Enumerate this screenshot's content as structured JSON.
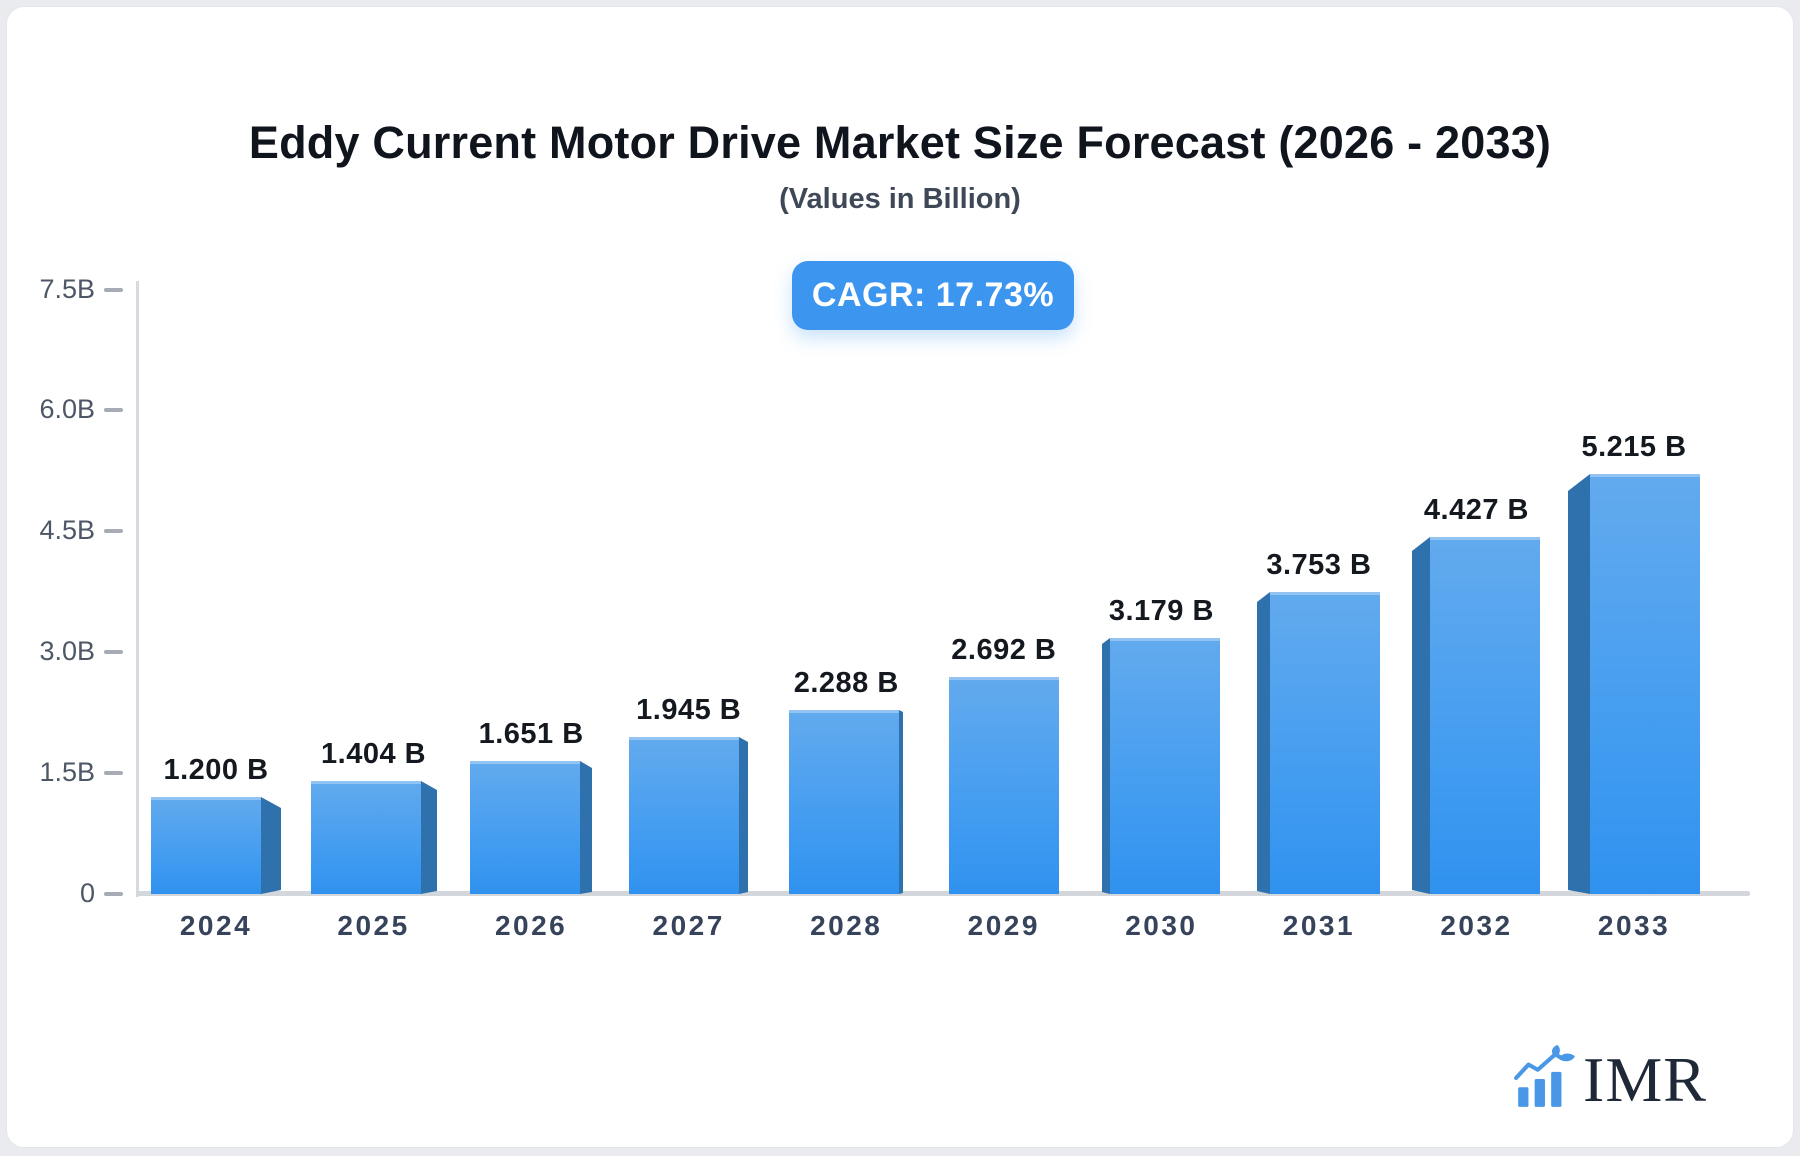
{
  "page": {
    "background": "#e9ebee",
    "card_background": "#ffffff"
  },
  "header": {
    "title": "Eddy Current Motor Drive Market Size Forecast (2026 - 2033)",
    "subtitle": "(Values in Billion)"
  },
  "badge": {
    "label": "CAGR: 17.73%",
    "background": "#3c96f0",
    "text_color": "#ffffff"
  },
  "chart_data": {
    "type": "bar",
    "title": "Eddy Current Motor Drive Market Size Forecast (2026 - 2033)",
    "subtitle": "(Values in Billion)",
    "categories": [
      "2024",
      "2025",
      "2026",
      "2027",
      "2028",
      "2029",
      "2030",
      "2031",
      "2032",
      "2033"
    ],
    "values": [
      1.2,
      1.404,
      1.651,
      1.945,
      2.288,
      2.692,
      3.179,
      3.753,
      4.427,
      5.215
    ],
    "bar_labels": [
      "1.200 B",
      "1.404 B",
      "1.651 B",
      "1.945 B",
      "2.288 B",
      "2.692 B",
      "3.179 B",
      "3.753 B",
      "4.427 B",
      "5.215 B"
    ],
    "y_ticks": [
      {
        "label": "7.5B",
        "value": 7.5
      },
      {
        "label": "6.0B",
        "value": 6.0
      },
      {
        "label": "4.5B",
        "value": 4.5
      },
      {
        "label": "3.0B",
        "value": 3.0
      },
      {
        "label": "1.5B",
        "value": 1.5
      },
      {
        "label": "0",
        "value": 0
      }
    ],
    "ylim": [
      0,
      7.5
    ],
    "xlabel": "",
    "ylabel": "",
    "grid": false,
    "legend": false,
    "style_3d": true,
    "bar_color_top": "#63aaee",
    "bar_color_bottom": "#3092ef",
    "bar_side_color": "#2e71ac",
    "axis_color": "#d5d8dc",
    "tick_color": "#a6abb4"
  },
  "logo": {
    "text": "IMR",
    "icon": "growth-chart-with-leaf-icon",
    "icon_color": "#4a97e8",
    "text_color": "#1e2836"
  }
}
